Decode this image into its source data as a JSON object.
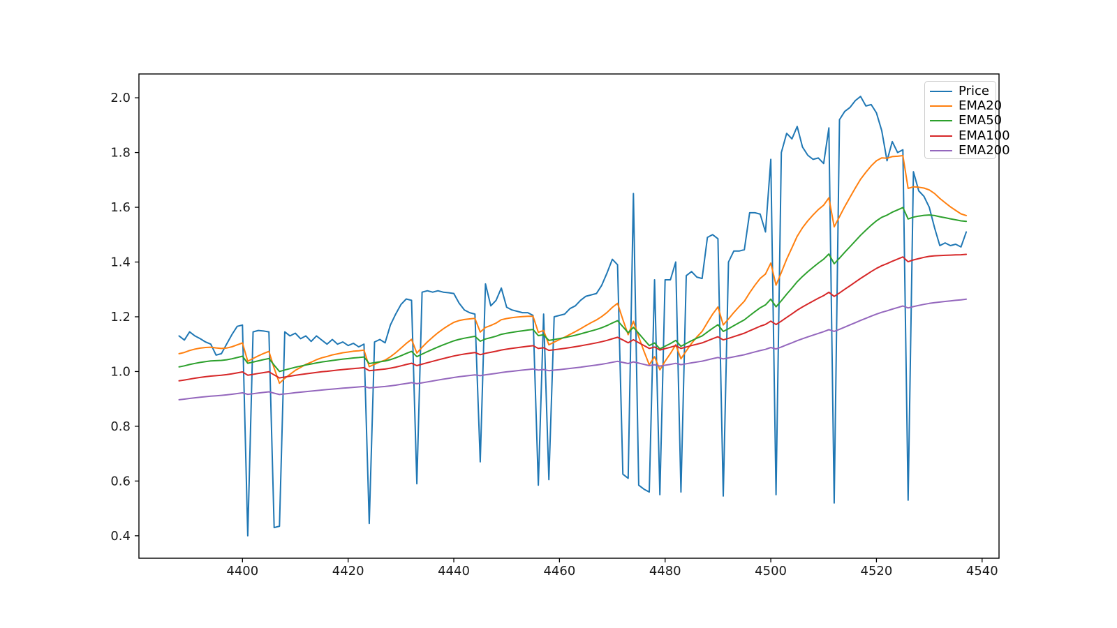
{
  "figure": {
    "background_color": "#ffffff",
    "frame_color": "#000000",
    "tick_label_color": "#1a1a1a"
  },
  "chart_data": {
    "type": "line",
    "title": "",
    "xlabel": "",
    "ylabel": "",
    "grid": false,
    "x_start": 4388,
    "x_step": 1,
    "x_end": 4537,
    "xlim": [
      4380.4,
      4543.2
    ],
    "ylim": [
      0.318,
      2.087
    ],
    "x_ticks": [
      4400,
      4420,
      4440,
      4460,
      4480,
      4500,
      4520,
      4540
    ],
    "y_ticks": [
      0.4,
      0.6,
      0.8,
      1.0,
      1.2,
      1.4,
      1.6,
      1.8,
      2.0
    ],
    "legend": {
      "position": "upper right",
      "entries": [
        "Price",
        "EMA20",
        "EMA50",
        "EMA100",
        "EMA200"
      ]
    },
    "series": [
      {
        "name": "Price",
        "color": "#1f77b4",
        "values": [
          1.13,
          1.115,
          1.145,
          1.13,
          1.12,
          1.108,
          1.1,
          1.06,
          1.065,
          1.1,
          1.135,
          1.165,
          1.17,
          0.4,
          1.145,
          1.15,
          1.148,
          1.145,
          0.43,
          0.435,
          1.145,
          1.13,
          1.14,
          1.12,
          1.13,
          1.11,
          1.13,
          1.115,
          1.1,
          1.117,
          1.1,
          1.108,
          1.095,
          1.103,
          1.09,
          1.1,
          0.445,
          1.108,
          1.117,
          1.105,
          1.17,
          1.21,
          1.245,
          1.265,
          1.26,
          0.59,
          1.29,
          1.295,
          1.29,
          1.295,
          1.29,
          1.288,
          1.285,
          1.25,
          1.225,
          1.215,
          1.21,
          0.67,
          1.32,
          1.24,
          1.26,
          1.305,
          1.235,
          1.225,
          1.22,
          1.215,
          1.215,
          1.205,
          0.585,
          1.21,
          0.605,
          1.2,
          1.205,
          1.21,
          1.23,
          1.24,
          1.26,
          1.275,
          1.28,
          1.285,
          1.315,
          1.36,
          1.41,
          1.39,
          0.625,
          0.61,
          1.65,
          0.585,
          0.57,
          0.56,
          1.335,
          0.55,
          1.335,
          1.335,
          1.4,
          0.56,
          1.35,
          1.365,
          1.345,
          1.34,
          1.49,
          1.5,
          1.485,
          0.545,
          1.4,
          1.44,
          1.44,
          1.445,
          1.58,
          1.58,
          1.575,
          1.51,
          1.775,
          0.55,
          1.8,
          1.87,
          1.85,
          1.895,
          1.82,
          1.79,
          1.775,
          1.78,
          1.76,
          1.89,
          0.52,
          1.92,
          1.95,
          1.965,
          1.99,
          2.005,
          1.97,
          1.975,
          1.945,
          1.88,
          1.77,
          1.84,
          1.8,
          1.81,
          0.53,
          1.73,
          1.66,
          1.64,
          1.6,
          1.525,
          1.46,
          1.47,
          1.46,
          1.465,
          1.455,
          1.51
        ]
      },
      {
        "name": "EMA20",
        "color": "#ff7f0e",
        "type": "ema_of_price",
        "period": 20,
        "first_value": 1.065,
        "last_value": 1.6
      },
      {
        "name": "EMA50",
        "color": "#2ca02c",
        "type": "ema_of_price",
        "period": 50,
        "first_value": 1.017,
        "last_value": 1.565
      },
      {
        "name": "EMA100",
        "color": "#d62728",
        "type": "ema_of_price",
        "period": 100,
        "first_value": 0.966,
        "last_value": 1.435
      },
      {
        "name": "EMA200",
        "color": "#9467bd",
        "type": "ema_of_price",
        "period": 200,
        "first_value": 0.897,
        "last_value": 1.272
      }
    ]
  }
}
